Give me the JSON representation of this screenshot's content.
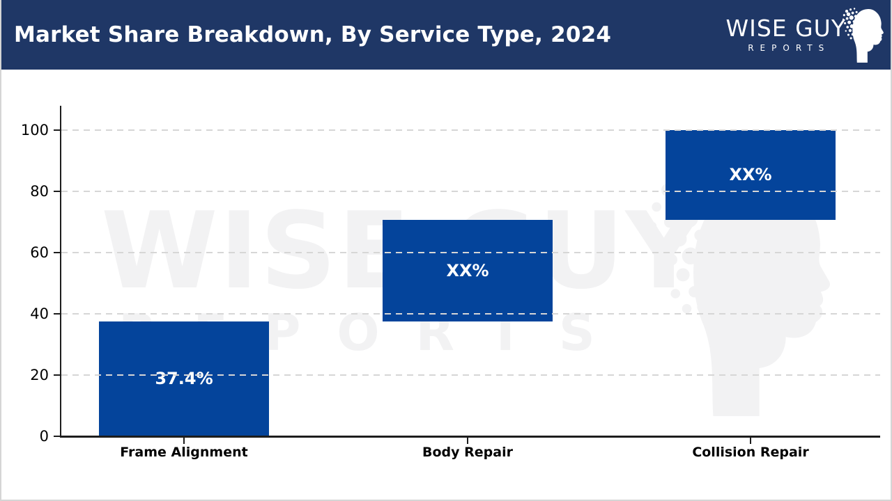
{
  "header": {
    "title": "Market Share Breakdown, By Service Type, 2024",
    "bg_color": "#1F3766",
    "logo": {
      "line1": "WISE GUY",
      "line2": "REPORTS"
    }
  },
  "watermark": {
    "line1": "WISE GUY",
    "line2": "REPORTS"
  },
  "chart_data": {
    "type": "bar",
    "variant": "floating-waterfall",
    "title": "Market Share Breakdown, By Service Type, 2024",
    "categories": [
      "Frame Alignment",
      "Body Repair",
      "Collision Repair"
    ],
    "segments": [
      {
        "category": "Frame Alignment",
        "start": 0,
        "end": 37.4,
        "label": "37.4%"
      },
      {
        "category": "Body Repair",
        "start": 37.4,
        "end": 70.5,
        "label": "XX%"
      },
      {
        "category": "Collision Repair",
        "start": 70.5,
        "end": 100,
        "label": "XX%"
      }
    ],
    "y_ticks": [
      0,
      20,
      40,
      60,
      80,
      100
    ],
    "ylim": [
      0,
      107
    ],
    "grid": "horizontal-dashed",
    "legend": "none",
    "bar_color": "#04449B",
    "bar_label_color": "#FFFFFF",
    "axis_color": "#1D1D1D",
    "gridline_color": "#D6D6D6"
  }
}
